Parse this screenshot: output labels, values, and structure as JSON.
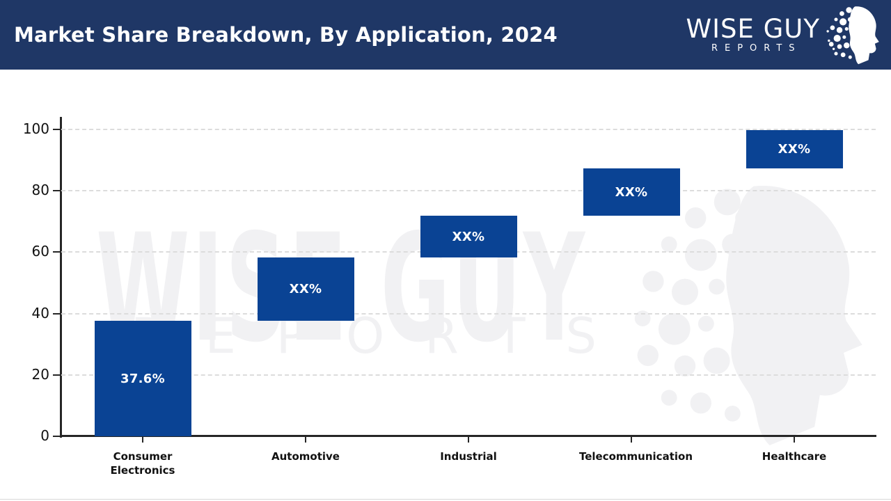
{
  "header": {
    "title": "Market Share Breakdown, By Application, 2024",
    "logo": {
      "line1": "WISE GUY",
      "line2": "REPORTS"
    }
  },
  "watermark": {
    "line1": "WISE GUY",
    "line2": "REPORTS"
  },
  "colors": {
    "header_bg": "#1f3766",
    "bar": "#0a4394",
    "bar_label": "#ffffff",
    "gridline": "#dcdcdc",
    "axis": "#262626",
    "watermark": "#f1f1f3"
  },
  "chart_data": {
    "type": "bar",
    "subtype": "waterfall",
    "title": "Market Share Breakdown, By Application, 2024",
    "categories": [
      "Consumer Electronics",
      "Automotive",
      "Industrial",
      "Telecommunication",
      "Healthcare"
    ],
    "segments": [
      {
        "category": "Consumer Electronics",
        "start": 0,
        "end": 37.6,
        "label": "37.6%"
      },
      {
        "category": "Automotive",
        "start": 37.6,
        "end": 58.2,
        "label": "XX%"
      },
      {
        "category": "Industrial",
        "start": 58.2,
        "end": 71.8,
        "label": "XX%"
      },
      {
        "category": "Telecommunication",
        "start": 71.8,
        "end": 87.2,
        "label": "XX%"
      },
      {
        "category": "Healthcare",
        "start": 87.2,
        "end": 99.8,
        "label": "XX%"
      }
    ],
    "xlabel": "",
    "ylabel": "",
    "ylim": [
      0,
      100
    ],
    "yticks": [
      0,
      20,
      40,
      60,
      80,
      100
    ],
    "grid": "horizontal-dashed",
    "legend": "none"
  }
}
